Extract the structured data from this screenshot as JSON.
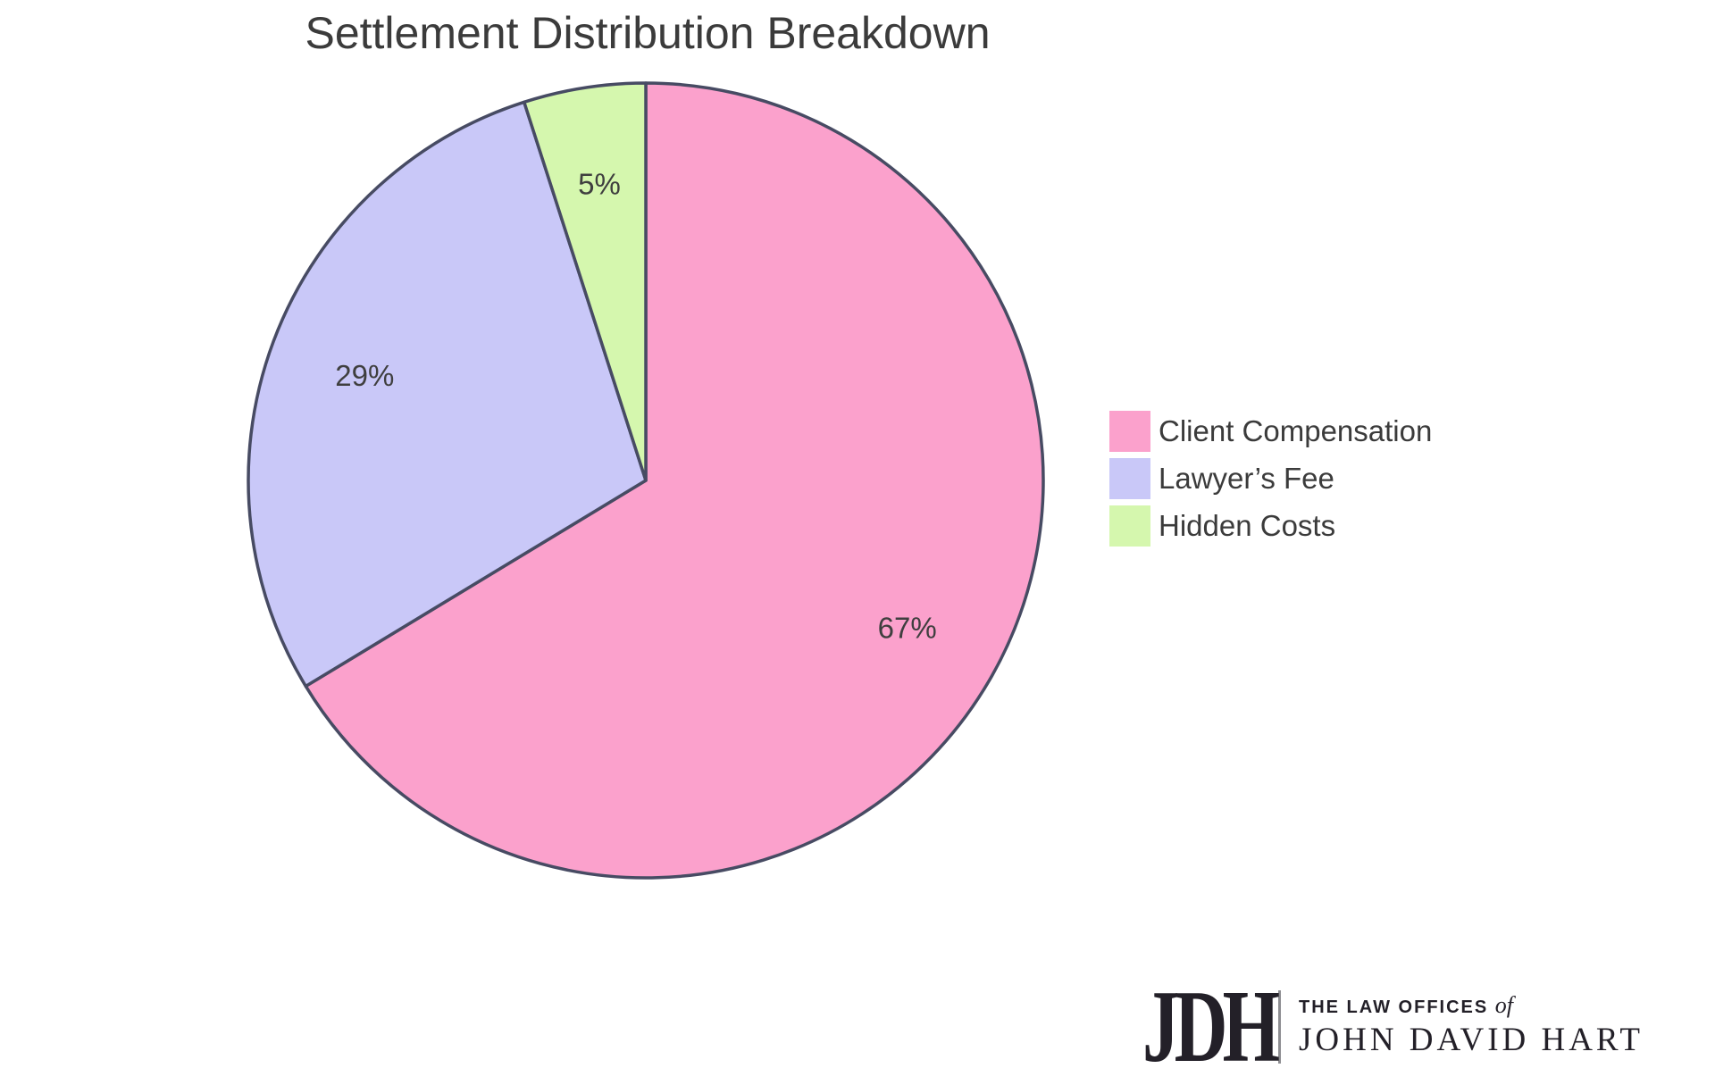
{
  "title": "Settlement Distribution Breakdown",
  "chart_data": {
    "type": "pie",
    "title": "Settlement Distribution Breakdown",
    "direction": "clockwise",
    "start_angle": "12 o'clock",
    "stroke_color": "#474b63",
    "stroke_width": 3.5,
    "label_color": "#3f3f3f",
    "legend_position": "right",
    "slices": [
      {
        "label": "Client Compensation",
        "value": 67,
        "pct_label": "67%",
        "color": "#fba1cc"
      },
      {
        "label": "Lawyer’s Fee",
        "value": 29,
        "pct_label": "29%",
        "color": "#c9c8f8"
      },
      {
        "label": "Hidden Costs",
        "value": 5,
        "pct_label": "5%",
        "color": "#d5f7ae"
      }
    ]
  },
  "logo": {
    "monogram": "JDH",
    "tagline_prefix": "THE LAW OFFICES",
    "tagline_of": "of",
    "name": "JOHN DAVID HART"
  }
}
